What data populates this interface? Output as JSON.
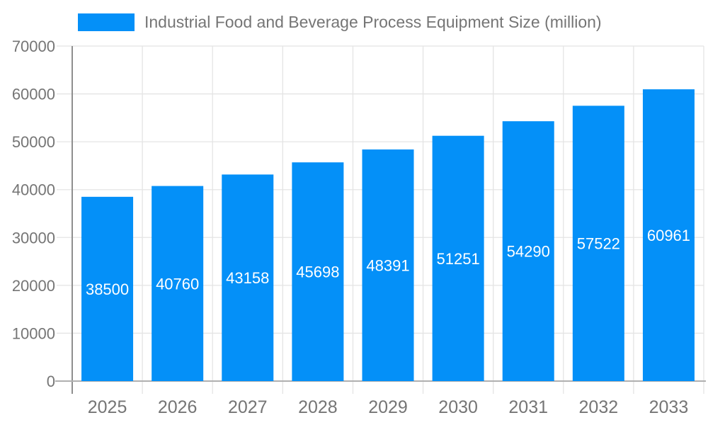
{
  "chart_data": {
    "type": "bar",
    "title": "Industrial Food and Beverage Process Equipment Size (million)",
    "categories": [
      "2025",
      "2026",
      "2027",
      "2028",
      "2029",
      "2030",
      "2031",
      "2032",
      "2033"
    ],
    "values": [
      38500,
      40760,
      43158,
      45698,
      48391,
      51251,
      54290,
      57522,
      60961
    ],
    "xlabel": "",
    "ylabel": "",
    "ylim": [
      0,
      70000
    ],
    "yticks": [
      0,
      10000,
      20000,
      30000,
      40000,
      50000,
      60000,
      70000
    ],
    "grid": true,
    "legend_position": "top-left",
    "bar_labels_inside_centered": true,
    "colors": {
      "bar": "#0490f8",
      "bar_label": "#ffffff",
      "axis_text": "#757575",
      "grid_line": "#e4e4e4",
      "y_axis_line": "#8f8f8f",
      "x_axis_line": "#b0b0b0",
      "background": "#ffffff"
    }
  }
}
